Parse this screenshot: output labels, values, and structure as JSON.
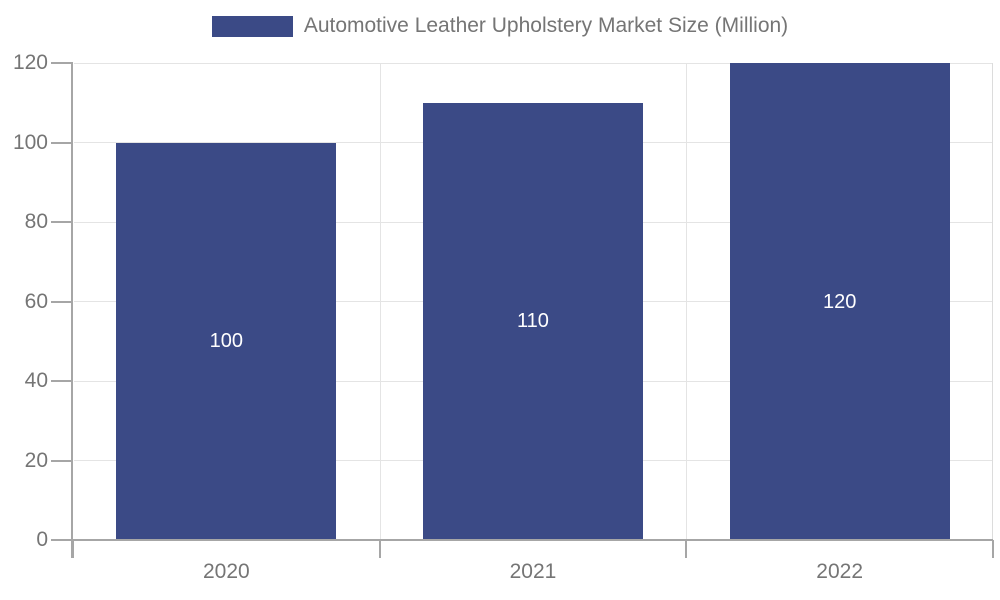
{
  "legend": {
    "label": "Automotive Leather Upholstery Market Size (Million)"
  },
  "colors": {
    "bar": "#3b4a86",
    "axis": "#a6a6a6",
    "grid": "#e4e4e4",
    "plot_border": "#dcdcdc",
    "tick_label": "#757575",
    "bar_label": "#ffffff",
    "background": "#ffffff"
  },
  "chart_data": {
    "type": "bar",
    "title": "Automotive Leather Upholstery Market Size (Million)",
    "categories": [
      "2020",
      "2021",
      "2022"
    ],
    "values": [
      100,
      110,
      120
    ],
    "series": [
      {
        "name": "Automotive Leather Upholstery Market Size (Million)",
        "values": [
          100,
          110,
          120
        ]
      }
    ],
    "bar_value_labels": [
      "100",
      "110",
      "120"
    ],
    "xlabel": "",
    "ylabel": "",
    "ylim": [
      0,
      120
    ],
    "ytick_step": 20,
    "ytick_labels": [
      "0",
      "20",
      "40",
      "60",
      "80",
      "100",
      "120"
    ],
    "grid": true,
    "legend_position": "top"
  }
}
